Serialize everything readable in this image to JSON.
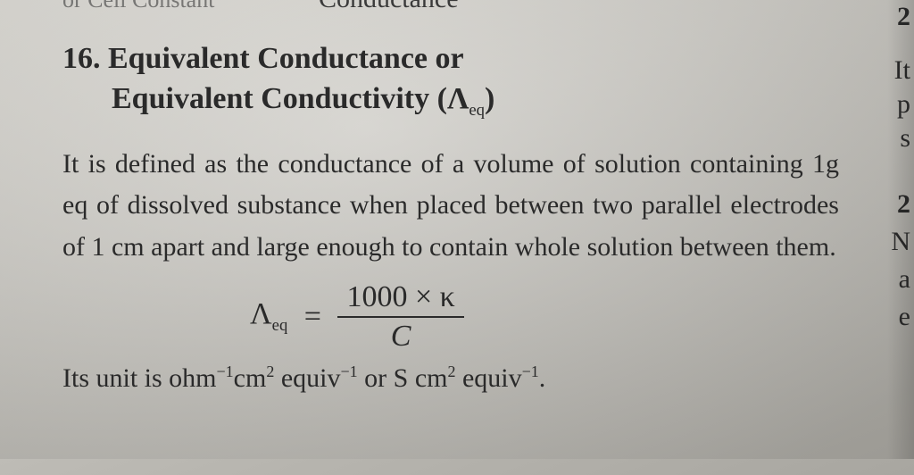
{
  "crop": {
    "left_fragment": "or Cell Constant",
    "center_word": "Conductance"
  },
  "heading": {
    "number": "16.",
    "line1": "Equivalent Conductance or",
    "line2_prefix": "Equivalent Conductivity",
    "symbol_open": "(Λ",
    "symbol_sub": "eq",
    "symbol_close": ")"
  },
  "body": {
    "text": "It is defined as the conductance of a volume of solution containing 1g eq of dissolved substance when placed between two parallel electrodes of 1 cm apart and large enough to contain whole solution between them."
  },
  "formula": {
    "lhs_main": "Λ",
    "lhs_sub": "eq",
    "eq": "=",
    "numerator": "1000 × κ",
    "denominator": "C"
  },
  "unit_line": {
    "prefix": "Its unit is ohm",
    "sup1": "−1",
    "mid1": "cm",
    "sup2": "2",
    "mid2": " equiv",
    "sup3": "−1",
    "or": " or S cm",
    "sup4": "2",
    "mid3": " equiv",
    "sup5": "−1",
    "period": "."
  },
  "right_cut": {
    "c1": "2",
    "c2": "It",
    "c3": "p",
    "c4": "s",
    "c5": "2",
    "c6": "N",
    "c7": "a",
    "c8": "e"
  },
  "colors": {
    "text": "#2a2a2a",
    "rule": "#2a2a2a"
  }
}
